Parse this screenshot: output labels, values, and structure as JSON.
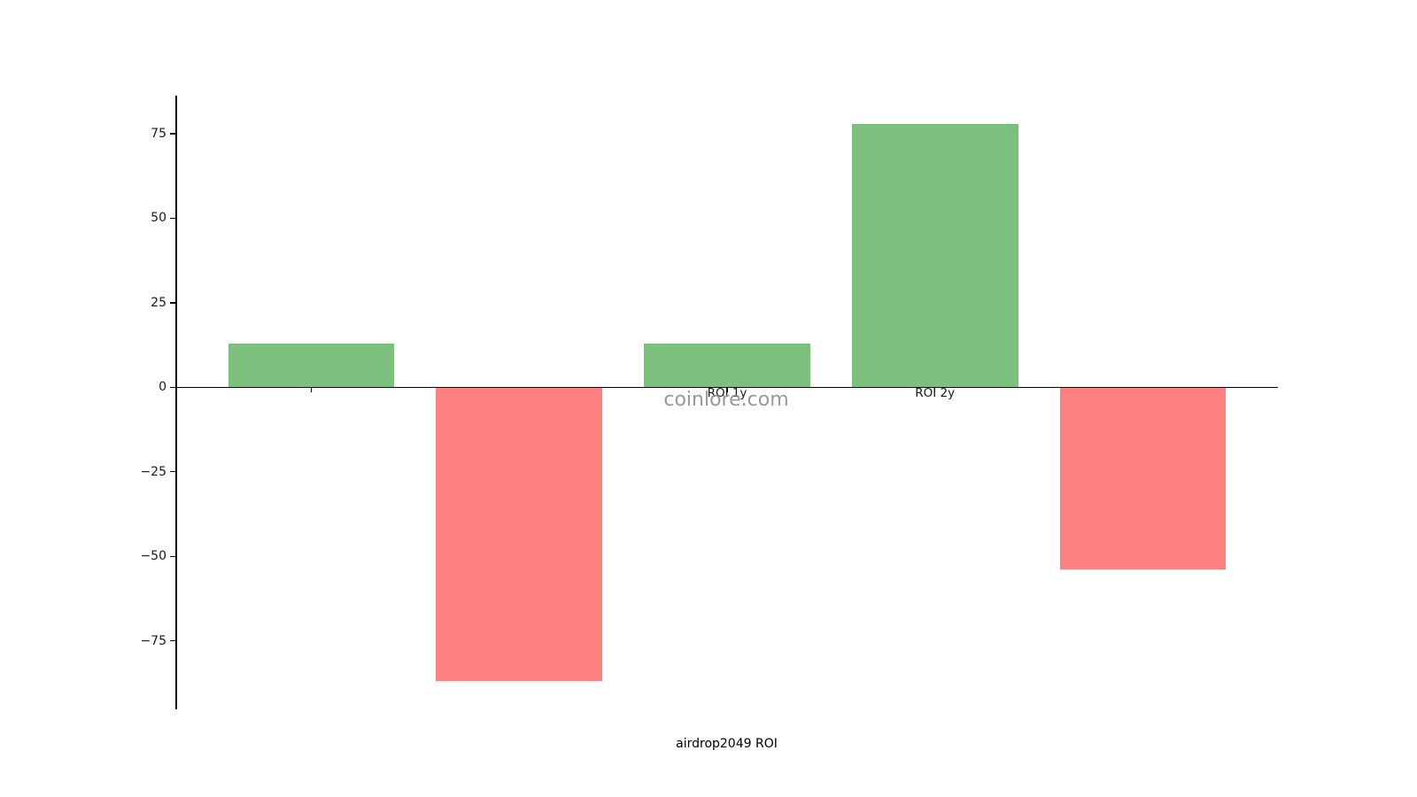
{
  "chart_data": {
    "type": "bar",
    "title": "airdrop2049 ROI",
    "watermark": "coinlore.com",
    "categories": [
      "",
      "",
      "ROI 1y",
      "ROI 2y",
      ""
    ],
    "values": [
      13,
      -87,
      13,
      78,
      -54
    ],
    "xlabel": "",
    "ylabel": "",
    "ylim": [
      -95.25,
      86.25
    ],
    "xlim": [
      -0.65,
      4.65
    ],
    "yticks": [
      75,
      50,
      25,
      0,
      -25,
      -50,
      -75
    ],
    "ytick_labels": [
      "75",
      "50",
      "25",
      "0",
      "−25",
      "−50",
      "−75"
    ],
    "xticks": [
      {
        "pos": 0,
        "label": ""
      },
      {
        "pos": 2,
        "label": "ROI 1y"
      },
      {
        "pos": 3,
        "label": "ROI 2y"
      }
    ],
    "bar_width": 0.8,
    "grid": false,
    "legend": null,
    "colors": {
      "positive": "#7cc07d",
      "negative": "#ff8080",
      "axis": "#000000",
      "tick_label": "#1a1a1a",
      "watermark": "#8f8f8f",
      "background": "#ffffff"
    }
  }
}
